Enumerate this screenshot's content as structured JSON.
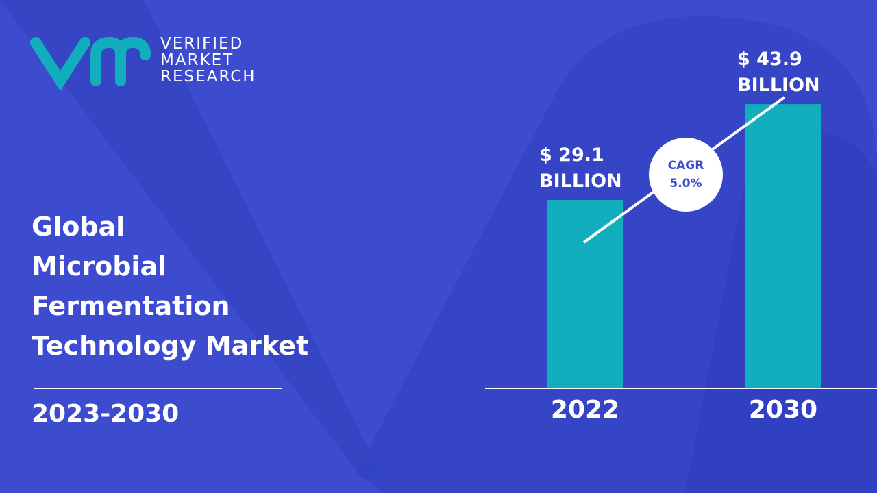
{
  "brand": {
    "lines": [
      "VERIFIED",
      "MARKET",
      "RESEARCH"
    ]
  },
  "chart_data": {
    "type": "bar",
    "title_lines": [
      "Global",
      "Microbial",
      "Fermentation",
      "Technology Market"
    ],
    "subtitle": "2023-2030",
    "categories": [
      "2022",
      "2030"
    ],
    "values": [
      29.1,
      43.9
    ],
    "value_labels": [
      "$ 29.1 BILLION",
      "$ 43.9 BILLION"
    ],
    "color": "#13aebd",
    "annotation": {
      "lines": [
        "CAGR",
        "5.0%"
      ]
    }
  }
}
